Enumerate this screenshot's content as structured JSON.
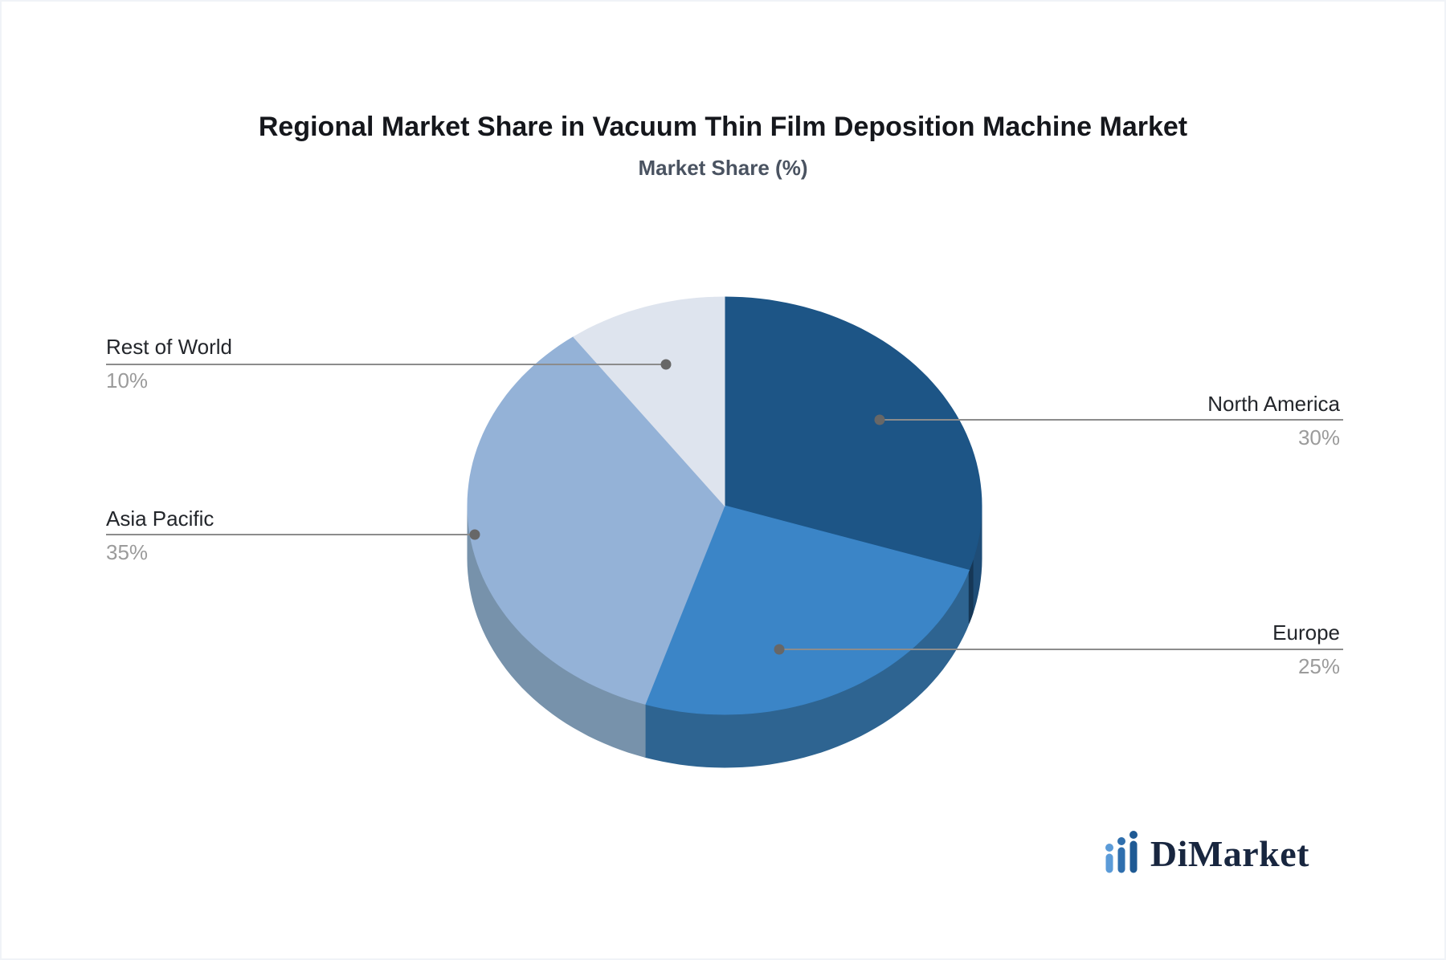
{
  "header": {
    "title": "Regional Market Share in Vacuum Thin Film Deposition Machine Market",
    "subtitle": "Market Share (%)"
  },
  "chart_data": {
    "type": "pie",
    "style": "3d",
    "title": "Regional Market Share in Vacuum Thin Film Deposition Machine Market",
    "subtitle": "Market Share (%)",
    "unit": "%",
    "start_angle_deg": -90,
    "direction": "clockwise",
    "legend": "none",
    "slices": [
      {
        "label": "North America",
        "value": 30,
        "pct_label": "30%",
        "color": "#1d5586",
        "side_color": "#1f4d77"
      },
      {
        "label": "Europe",
        "value": 25,
        "pct_label": "25%",
        "color": "#3b85c7",
        "side_color": "#2e6491"
      },
      {
        "label": "Asia Pacific",
        "value": 35,
        "pct_label": "35%",
        "color": "#94b2d7",
        "side_color": "#7792ab"
      },
      {
        "label": "Rest of World",
        "value": 10,
        "pct_label": "10%",
        "color": "#dee4ee",
        "side_color": "#b9c2d2"
      }
    ],
    "leader_line_color": "#8c8c8c",
    "leader_dot_color": "#676767",
    "label_color": "#23262b",
    "pct_color": "#9b9b9b"
  },
  "branding": {
    "logo_text": "DiMarket",
    "logo_icon": "three-bar-chart-icon",
    "logo_text_color": "#18263f",
    "logo_bar_colors": [
      "#5b9bd8",
      "#2f6fae",
      "#1f5a94"
    ]
  }
}
